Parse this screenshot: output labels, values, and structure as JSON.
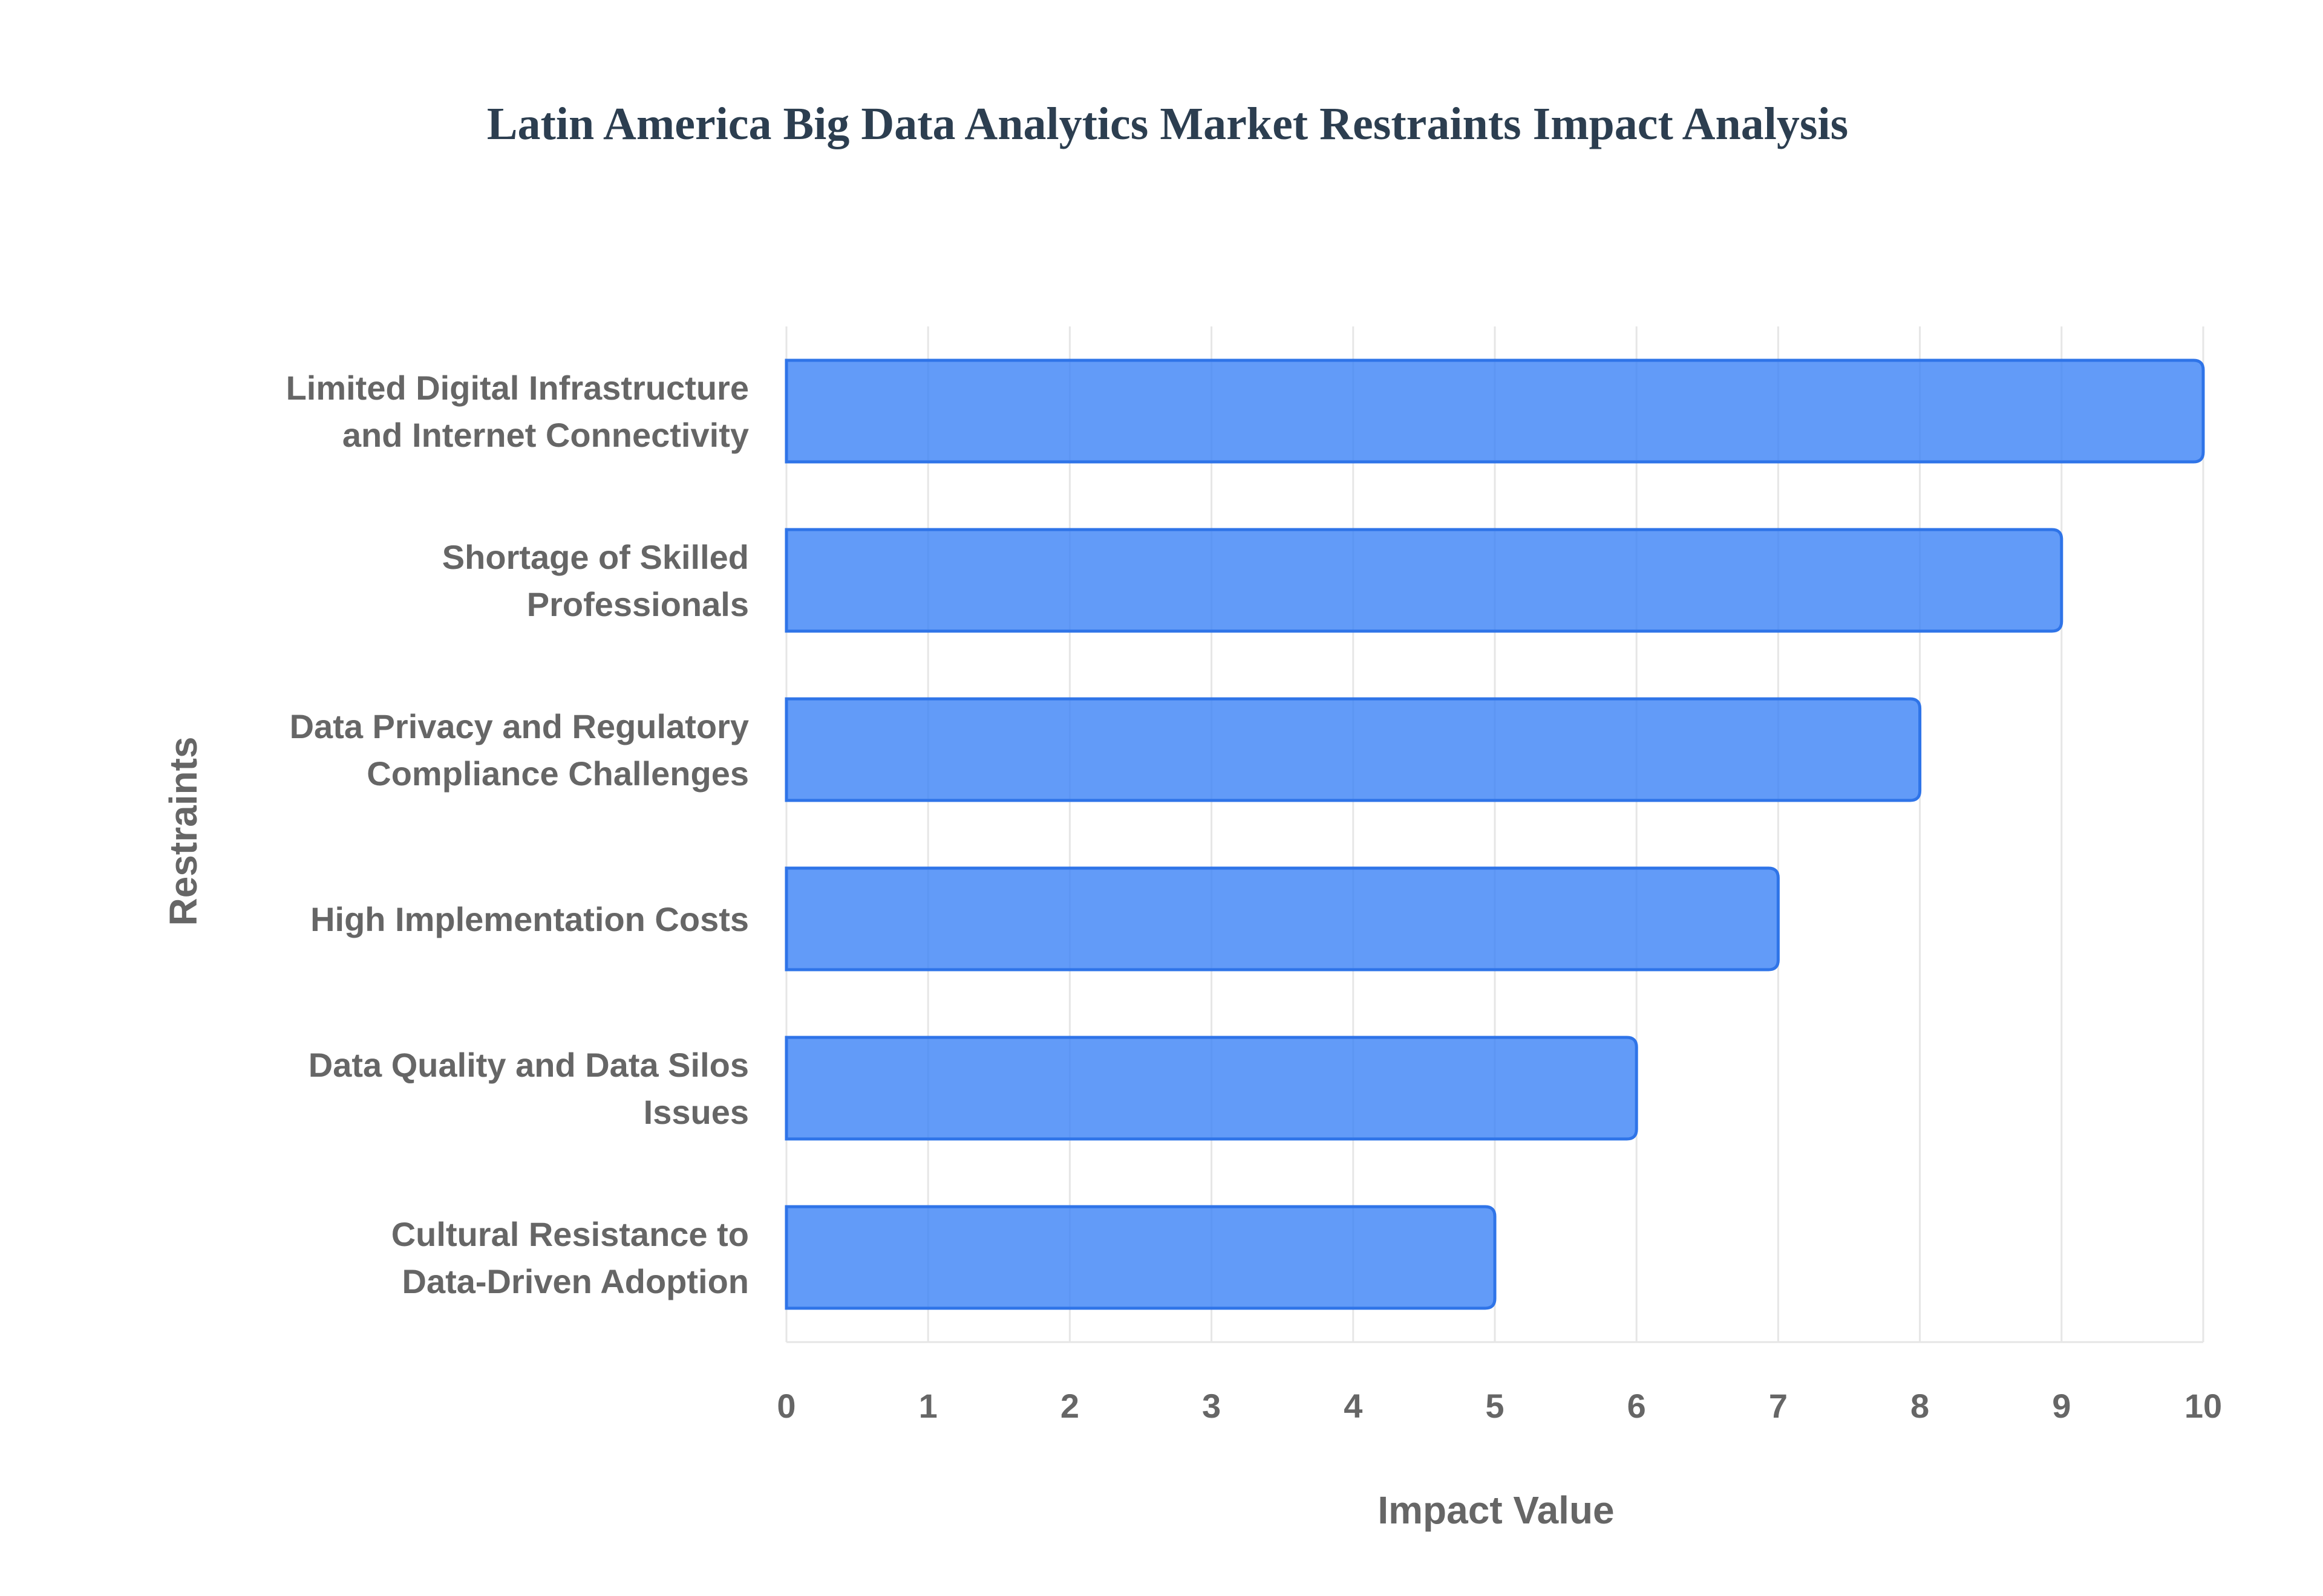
{
  "chart_data": {
    "type": "bar",
    "orientation": "horizontal",
    "title": "Latin America Big Data Analytics Market Restraints Impact Analysis",
    "xlabel": "Impact Value",
    "ylabel": "Restraints",
    "categories": [
      [
        "Limited Digital Infrastructure",
        "and Internet Connectivity"
      ],
      [
        "Shortage of Skilled",
        "Professionals"
      ],
      [
        "Data Privacy and Regulatory",
        "Compliance Challenges"
      ],
      [
        "High Implementation Costs"
      ],
      [
        "Data Quality and Data Silos",
        "Issues"
      ],
      [
        "Cultural Resistance to",
        "Data-Driven Adoption"
      ]
    ],
    "values": [
      10,
      9,
      8,
      7,
      6,
      5
    ],
    "xlim": [
      0,
      10
    ],
    "xticks": [
      "0",
      "1",
      "2",
      "3",
      "4",
      "5",
      "6",
      "7",
      "8",
      "9",
      "10"
    ],
    "grid": true,
    "legend": "none",
    "colors": {
      "bar_fill": "#3b82f6",
      "bar_stroke": "#2f74e8",
      "grid": "#e6e6e6",
      "title": "#2c3e50",
      "text": "#666666"
    }
  }
}
